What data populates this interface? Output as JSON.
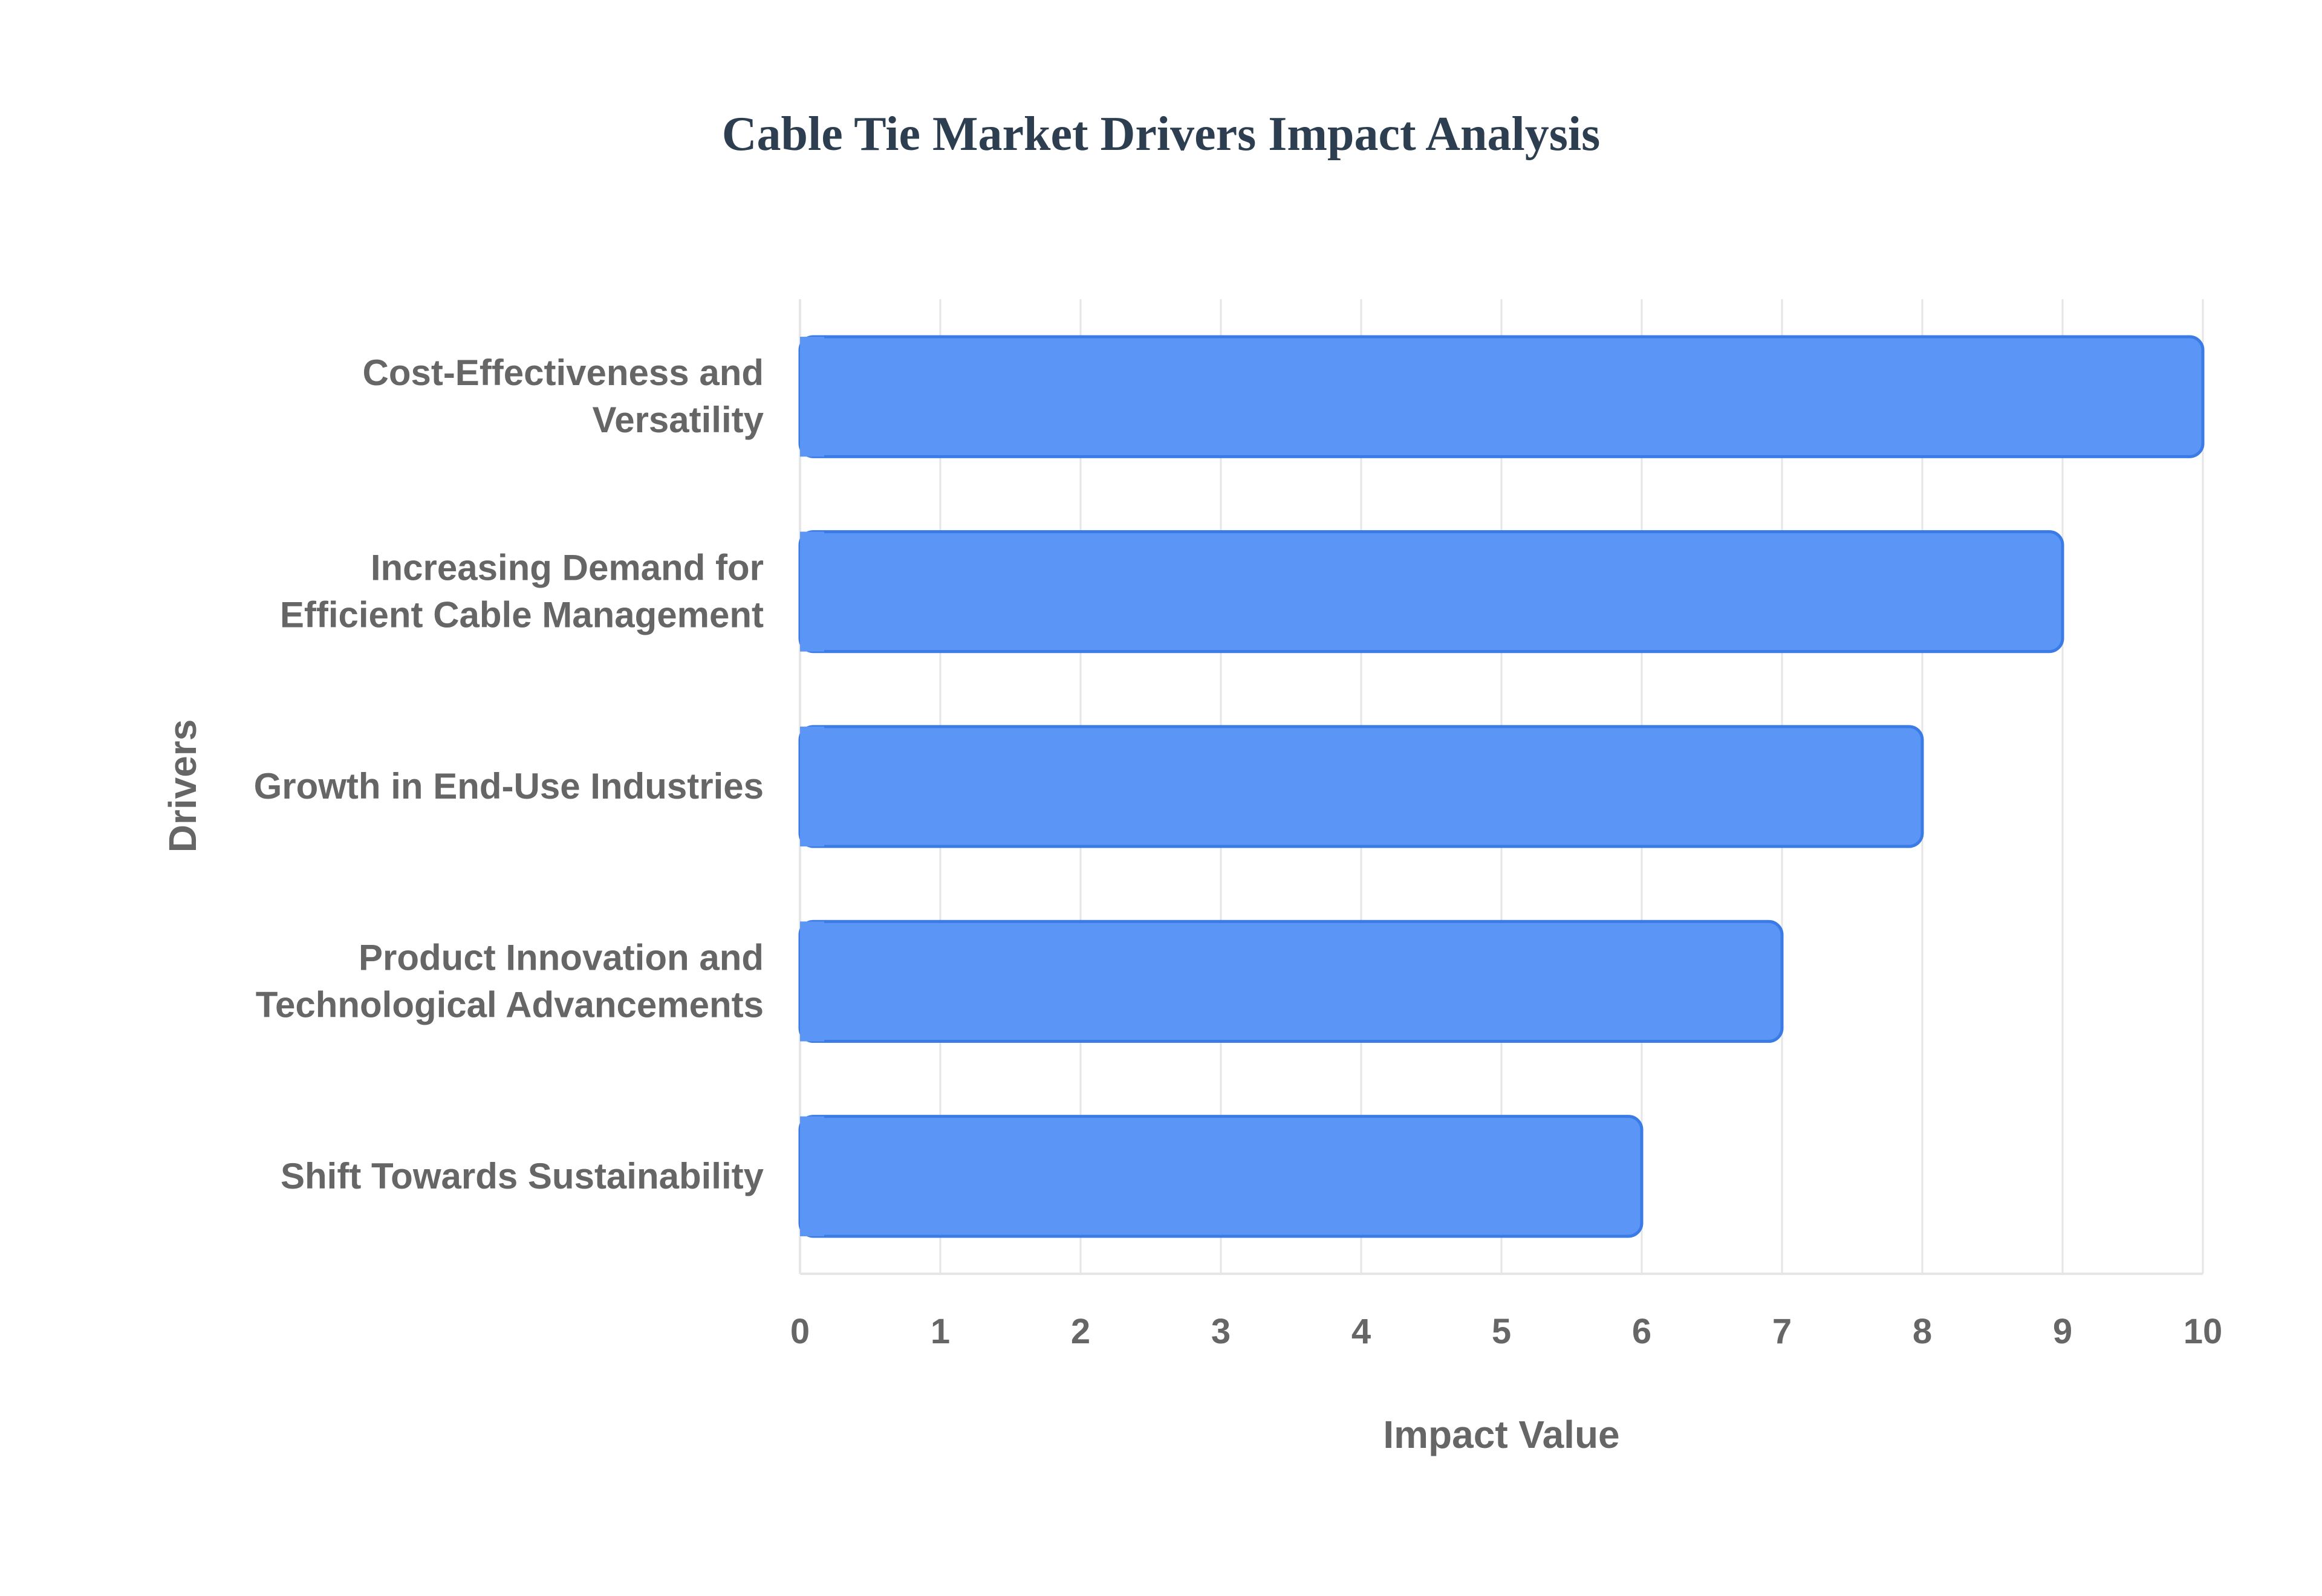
{
  "chart_data": {
    "type": "bar",
    "orientation": "horizontal",
    "title": "Cable Tie Market Drivers Impact Analysis",
    "xlabel": "Impact Value",
    "ylabel": "Drivers",
    "categories": [
      [
        "Cost-Effectiveness and",
        "Versatility"
      ],
      [
        "Increasing Demand for",
        "Efficient Cable Management"
      ],
      [
        "Growth in End-Use Industries"
      ],
      [
        "Product Innovation and",
        "Technological Advancements"
      ],
      [
        "Shift Towards Sustainability"
      ]
    ],
    "values": [
      10,
      9,
      8,
      7,
      6
    ],
    "xlim": [
      0,
      10
    ],
    "xticks": [
      "0",
      "1",
      "2",
      "3",
      "4",
      "5",
      "6",
      "7",
      "8",
      "9",
      "10"
    ],
    "grid": true,
    "legend": "none",
    "colors": {
      "bar_fill": "#5b95f5",
      "bar_stroke": "#3a7be6",
      "title": "#2c3e50",
      "text": "#666666",
      "grid": "#e6e6e6"
    }
  }
}
